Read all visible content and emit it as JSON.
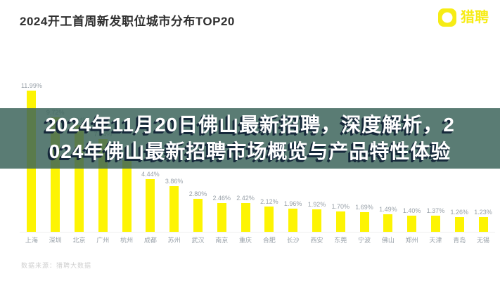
{
  "header": {
    "title": "2024开工首周新发职位城市分布TOP20"
  },
  "logo": {
    "text": "猎聘"
  },
  "overlay": {
    "line1": "2024年11月20日佛山最新招聘，深度解析，2",
    "line2": "024年佛山最新招聘市场概览与产品特性体验"
  },
  "footer": {
    "source": "数据来源：猎聘大数据"
  },
  "theme": {
    "accent_yellow": "#f6ec15",
    "bar_yellow": "#fdf403",
    "overlay_teal": "rgba(58,99,89,0.84)",
    "text_dark": "#2f2f2f",
    "label_gray": "#98a0a8"
  },
  "chart_data": {
    "type": "bar",
    "title": "2024开工首周新发职位城市分布TOP20",
    "categories": [
      "上海",
      "深圳",
      "北京",
      "广州",
      "杭州",
      "成都",
      "苏州",
      "武汉",
      "南京",
      "重庆",
      "合肥",
      "长沙",
      "西安",
      "东莞",
      "宁波",
      "佛山",
      "郑州",
      "天津",
      "青岛",
      "无锡"
    ],
    "values": [
      11.99,
      9.72,
      9.04,
      7.84,
      6.06,
      4.44,
      3.86,
      2.8,
      2.46,
      2.42,
      2.12,
      1.96,
      1.92,
      1.7,
      1.69,
      1.49,
      1.4,
      1.37,
      1.26,
      1.23
    ],
    "labels": [
      "11.99%",
      "9.72%",
      "9.04%",
      "7.84%",
      "6.06%",
      "4.44%",
      "3.86%",
      "2.80%",
      "2.46%",
      "2.42%",
      "2.12%",
      "1.96%",
      "1.92%",
      "1.70%",
      "1.69%",
      "1.49%",
      "1.40%",
      "1.37%",
      "1.26%",
      "1.23%"
    ],
    "xlabel": "",
    "ylabel": "",
    "ylim": [
      0,
      13
    ],
    "grid": false,
    "legend": false,
    "note": "labels of bars 4-5 are hidden behind the translucent headline band"
  }
}
